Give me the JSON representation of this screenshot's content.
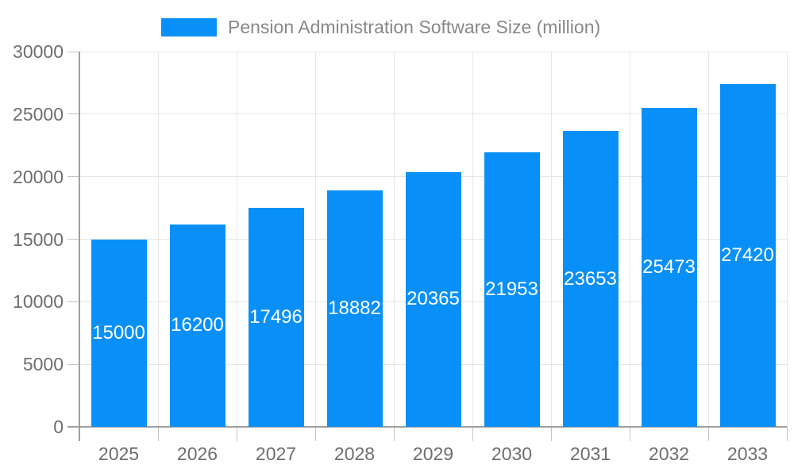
{
  "legend": {
    "label": "Pension Administration Software Size (million)"
  },
  "colors": {
    "bar": "#0990F8",
    "grid": "#E6E6E6",
    "axis_line": "#9E9E9E",
    "tick": "#C4C4C4",
    "axis_text": "#6E6E6E",
    "legend_text": "#888888",
    "bar_label_text": "#FFFFFF",
    "background": "#FFFFFF"
  },
  "chart_data": {
    "type": "bar",
    "title": "Pension Administration Software Size (million)",
    "categories": [
      "2025",
      "2026",
      "2027",
      "2028",
      "2029",
      "2030",
      "2031",
      "2032",
      "2033"
    ],
    "values": [
      15000,
      16200,
      17496,
      18882,
      20365,
      21953,
      23653,
      25473,
      27420
    ],
    "xlabel": "",
    "ylabel": "",
    "ylim": [
      0,
      30000
    ],
    "yticks": [
      0,
      5000,
      10000,
      15000,
      20000,
      25000,
      30000
    ],
    "grid": true,
    "legend_position": "top",
    "bar_label_position": "inside-middle"
  }
}
